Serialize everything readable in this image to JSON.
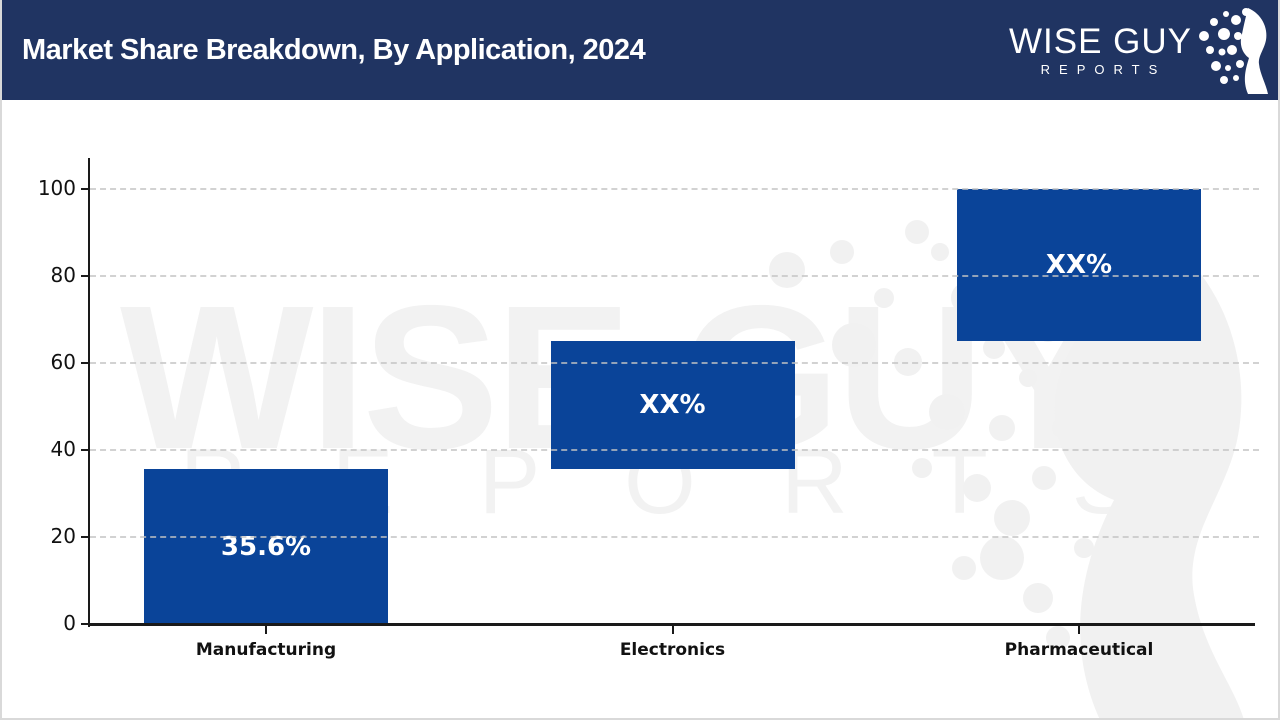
{
  "header": {
    "title": "Market Share Breakdown, By Application, 2024",
    "logo_line1": "WISE GUY",
    "logo_line2": "REPORTS"
  },
  "watermark": {
    "line1": "WISE GUY",
    "line2": "R E P O R T S"
  },
  "colors": {
    "header_bg": "#203462",
    "bar": "#0a4499",
    "bar_label": "#ffffff",
    "axis": "#1a1a1a",
    "gridline": "#cfcfcf",
    "watermark": "#f2f2f2",
    "page_border": "#d9d9d9"
  },
  "chart_data": {
    "type": "bar",
    "subtype": "floating-waterfall",
    "title": "Market Share Breakdown, By Application, 2024",
    "categories": [
      "Manufacturing",
      "Electronics",
      "Pharmaceutical"
    ],
    "segments": [
      {
        "category": "Manufacturing",
        "start": 0,
        "end": 35.6,
        "label": "35.6%"
      },
      {
        "category": "Electronics",
        "start": 35.6,
        "end": 65,
        "label": "XX%"
      },
      {
        "category": "Pharmaceutical",
        "start": 65,
        "end": 100,
        "label": "XX%"
      }
    ],
    "ylim": [
      0,
      100
    ],
    "yticks": [
      0,
      20,
      40,
      60,
      80,
      100
    ],
    "xlabel": "",
    "ylabel": "",
    "grid": "horizontal-dashed",
    "legend": "none",
    "bar_color": "#0a4499"
  }
}
